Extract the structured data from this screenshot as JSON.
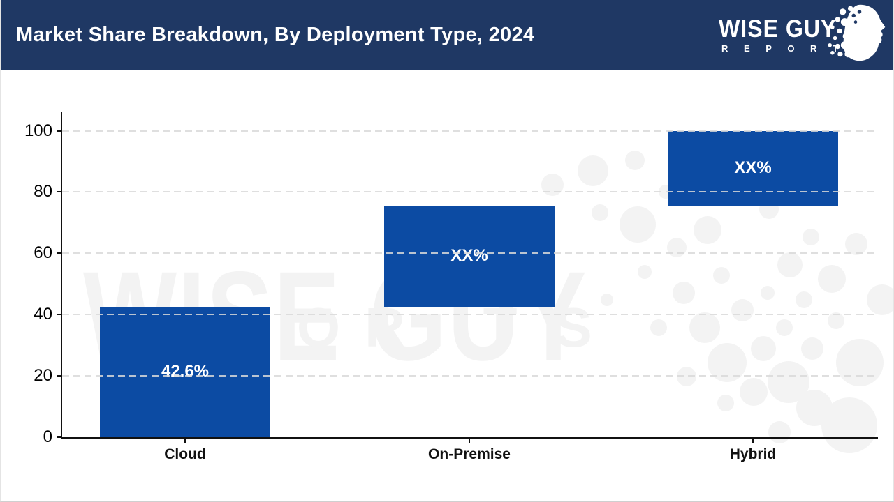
{
  "header": {
    "title": "Market Share Breakdown, By Deployment Type, 2024",
    "logo": {
      "line1": "WISE GUY",
      "line2": "R E P O R T S",
      "face_icon": "dotted-face-profile"
    }
  },
  "watermark": {
    "line1": "WISE GUY",
    "line2_letters": [
      "R",
      "E",
      "P",
      "O",
      "R",
      "T",
      "S"
    ]
  },
  "chart_data": {
    "type": "bar",
    "subtype": "floating-cumulative-bars",
    "title": "Market Share Breakdown, By Deployment Type, 2024",
    "categories": [
      "Cloud",
      "On-Premise",
      "Hybrid"
    ],
    "bars": [
      {
        "category": "Cloud",
        "start": 0,
        "end": 42.6,
        "label": "42.6%"
      },
      {
        "category": "On-Premise",
        "start": 42.6,
        "end": 75.6,
        "label": "XX%"
      },
      {
        "category": "Hybrid",
        "start": 75.6,
        "end": 100,
        "label": "XX%"
      }
    ],
    "xlabel": "",
    "ylabel": "",
    "ylim": [
      0,
      106
    ],
    "yticks": [
      0,
      20,
      40,
      60,
      80,
      100
    ],
    "grid": "horizontal-dashed",
    "legend": null,
    "bar_color": "#0C4BA3",
    "label_color": "#ffffff"
  },
  "colors": {
    "header_bg": "#1F3864",
    "bar_blue": "#0C4BA3",
    "grid_gray": "#d9d9d9",
    "watermark_gray": "#f3f3f3",
    "axis_black": "#111111"
  }
}
